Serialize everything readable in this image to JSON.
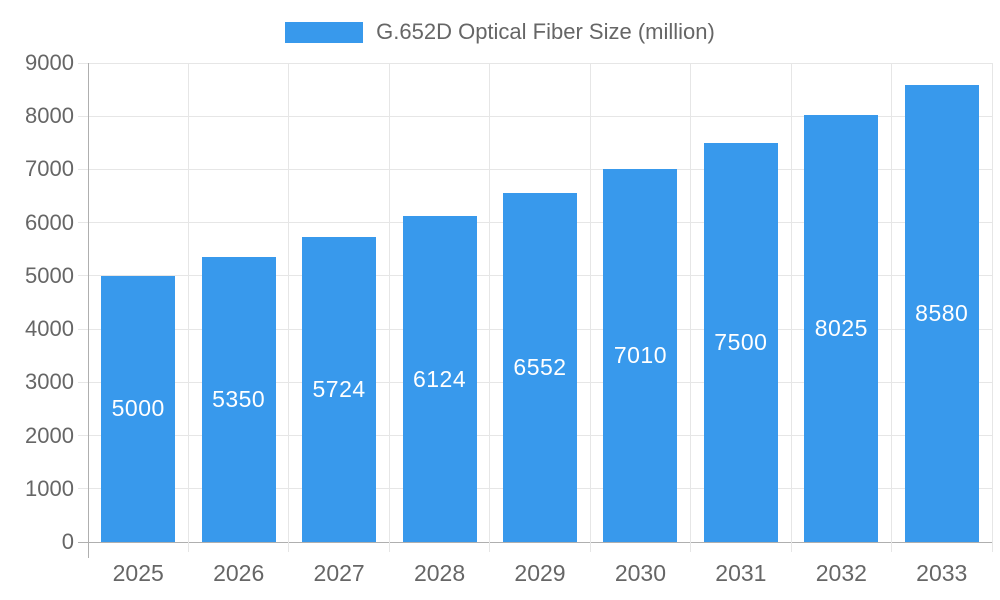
{
  "chart_data": {
    "type": "bar",
    "title": "G.652D Optical Fiber Size (million)",
    "categories": [
      "2025",
      "2026",
      "2027",
      "2028",
      "2029",
      "2030",
      "2031",
      "2032",
      "2033"
    ],
    "values": [
      5000,
      5350,
      5724,
      6124,
      6552,
      7010,
      7500,
      8025,
      8580
    ],
    "series": [
      {
        "name": "G.652D Optical Fiber Size (million)",
        "values": [
          5000,
          5350,
          5724,
          6124,
          6552,
          7010,
          7500,
          8025,
          8580
        ]
      }
    ],
    "xlabel": "",
    "ylabel": "",
    "ylim": [
      0,
      9000
    ],
    "ytick_step": 1000,
    "ytick_labels": [
      "0",
      "1000",
      "2000",
      "3000",
      "4000",
      "5000",
      "6000",
      "7000",
      "8000",
      "9000"
    ],
    "grid": true,
    "legend_position": "top",
    "bar_labels_inside": true,
    "colors": {
      "bar": "#3899EC",
      "bar_label_text": "#FFFFFF",
      "axis_text": "#666666",
      "gridline": "#E6E6E6",
      "axis_line": "#AFAFAF"
    }
  }
}
